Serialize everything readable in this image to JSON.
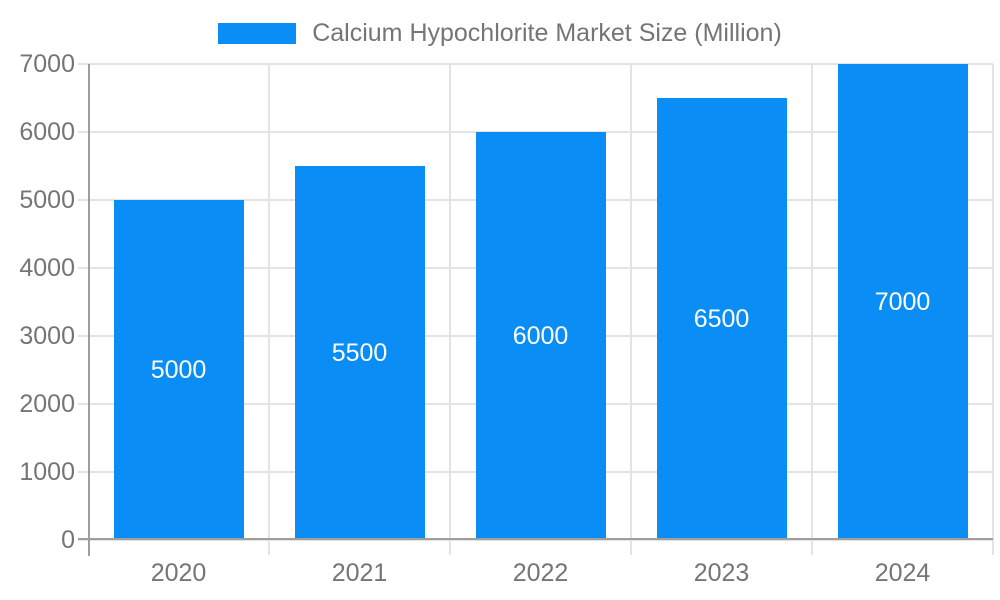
{
  "chart_data": {
    "type": "bar",
    "title": "Calcium Hypochlorite Market Size (Million)",
    "legend": {
      "position": "top-center",
      "label": "Calcium Hypochlorite Market Size (Million)"
    },
    "categories": [
      "2020",
      "2021",
      "2022",
      "2023",
      "2024"
    ],
    "series": [
      {
        "name": "Calcium Hypochlorite Market Size (Million)",
        "values": [
          5000,
          5500,
          6000,
          6500,
          7000
        ]
      }
    ],
    "bar_labels": [
      "5000",
      "5500",
      "6000",
      "6500",
      "7000"
    ],
    "xlabel": "",
    "ylabel": "",
    "ylim": [
      0,
      7000
    ],
    "ytick_step": 1000,
    "yticks": [
      0,
      1000,
      2000,
      3000,
      4000,
      5000,
      6000,
      7000
    ],
    "grid": true,
    "colors": {
      "bar": "#0A8EF6",
      "text": "#757575",
      "grid": "#E3E3E3",
      "axis": "#9E9E9E",
      "bar_label": "#FFFFFF",
      "background": "#FFFFFF"
    }
  }
}
